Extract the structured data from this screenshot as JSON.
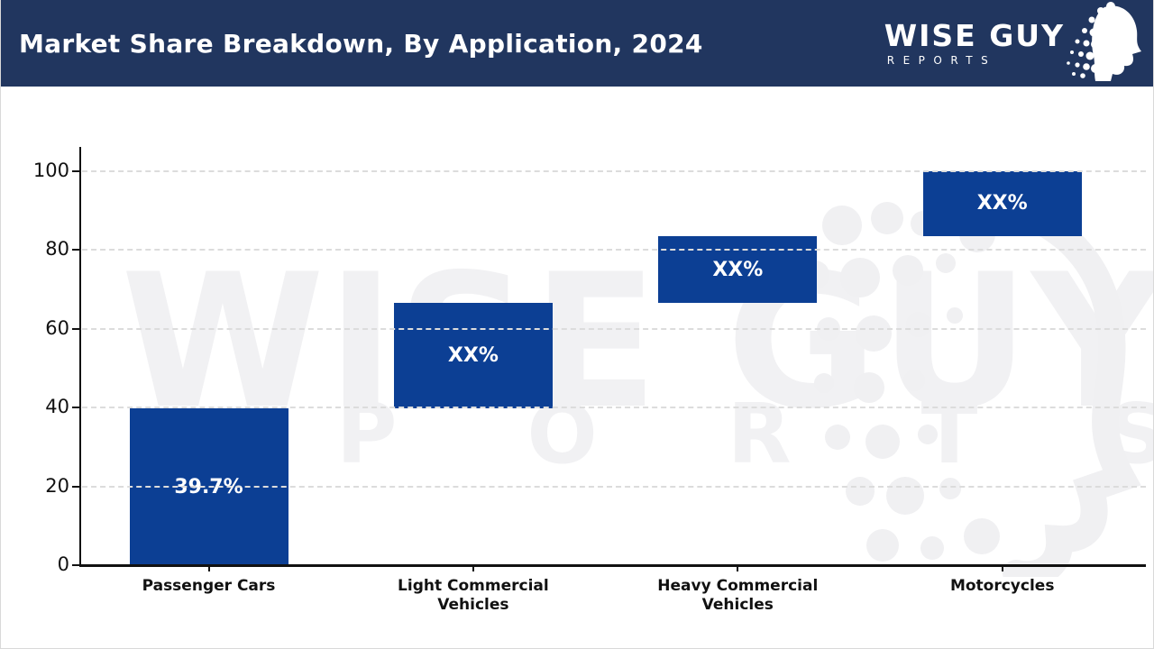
{
  "header": {
    "title": "Market Share Breakdown, By Application, 2024",
    "logo": {
      "line1": "WISE GUY",
      "line2": "REPORTS"
    }
  },
  "watermark": {
    "line1": "WISE GUY",
    "line2": "P O R T S"
  },
  "icons": {
    "logo_head": "wiseguy-head-icon",
    "watermark_head": "wiseguy-head-watermark-icon"
  },
  "chart_data": {
    "type": "bar",
    "variant": "floating-waterfall",
    "title": "Market Share Breakdown, By Application, 2024",
    "categories": [
      "Passenger Cars",
      "Light Commercial Vehicles",
      "Heavy Commercial Vehicles",
      "Motorcycles"
    ],
    "segments": [
      {
        "category": "Passenger Cars",
        "start": 0,
        "end": 39.7,
        "label": "39.7%",
        "value": 39.7
      },
      {
        "category": "Light Commercial Vehicles",
        "start": 39.7,
        "end": 66.5,
        "label": "XX%",
        "value_estimate": 26.8
      },
      {
        "category": "Heavy Commercial Vehicles",
        "start": 66.5,
        "end": 83.4,
        "label": "XX%",
        "value_estimate": 16.9
      },
      {
        "category": "Motorcycles",
        "start": 83.4,
        "end": 100,
        "label": "XX%",
        "value_estimate": 16.6
      }
    ],
    "yticks": [
      0,
      20,
      40,
      60,
      80,
      100
    ],
    "ylim": [
      0,
      106
    ],
    "xlabel": "",
    "ylabel": "",
    "grid": {
      "horizontal": true,
      "style": "dashed"
    },
    "legend": null,
    "bar_color": "#0c3f94",
    "label_color": "#ffffff",
    "axis_color": "#111111",
    "gridline_color": "#dcdcdc",
    "header_bg": "#21365f"
  }
}
